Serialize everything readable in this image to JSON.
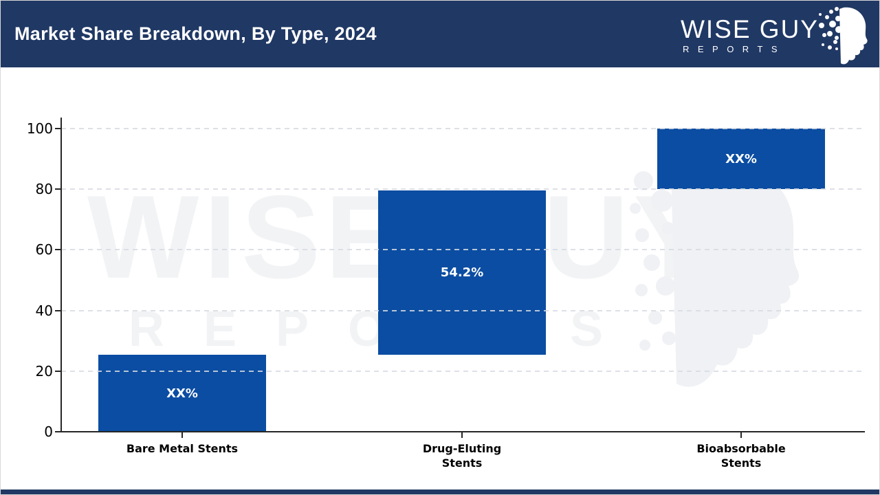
{
  "header": {
    "title": "Market Share Breakdown, By Type, 2024",
    "logo": {
      "wordmark": "WISE GUY",
      "subtitle": "REPORTS"
    }
  },
  "watermark": {
    "wordmark": "WISE GUY",
    "subtitle": "REPORTS"
  },
  "chart_data": {
    "type": "bar",
    "subtype": "waterfall",
    "title": "Market Share Breakdown, By Type, 2024",
    "categories": [
      [
        "Bare Metal Stents"
      ],
      [
        "Drug-Eluting",
        "Stents"
      ],
      [
        "Bioabsorbable",
        "Stents"
      ]
    ],
    "segments": [
      {
        "category": "Bare Metal Stents",
        "start": 0,
        "end": 25.3,
        "label": "XX%"
      },
      {
        "category": "Drug-Eluting Stents",
        "start": 25.3,
        "end": 79.5,
        "label": "54.2%"
      },
      {
        "category": "Bioabsorbable Stents",
        "start": 80,
        "end": 100,
        "label": "XX%"
      }
    ],
    "yticks": [
      0,
      20,
      40,
      60,
      80,
      100
    ],
    "ylim": [
      0,
      104
    ],
    "grid": "horizontal-dashed",
    "legend": null,
    "bar_color": "#0b4da2"
  },
  "colors": {
    "header_bg": "#203864",
    "footer_bg": "#203864",
    "bar": "#0b4da2",
    "bar_label": "#ffffff",
    "axis": "#262626",
    "tick_text": "#000000",
    "gridline": "#d9dbe2",
    "watermark": "#f2f3f5",
    "background": "#ffffff"
  }
}
